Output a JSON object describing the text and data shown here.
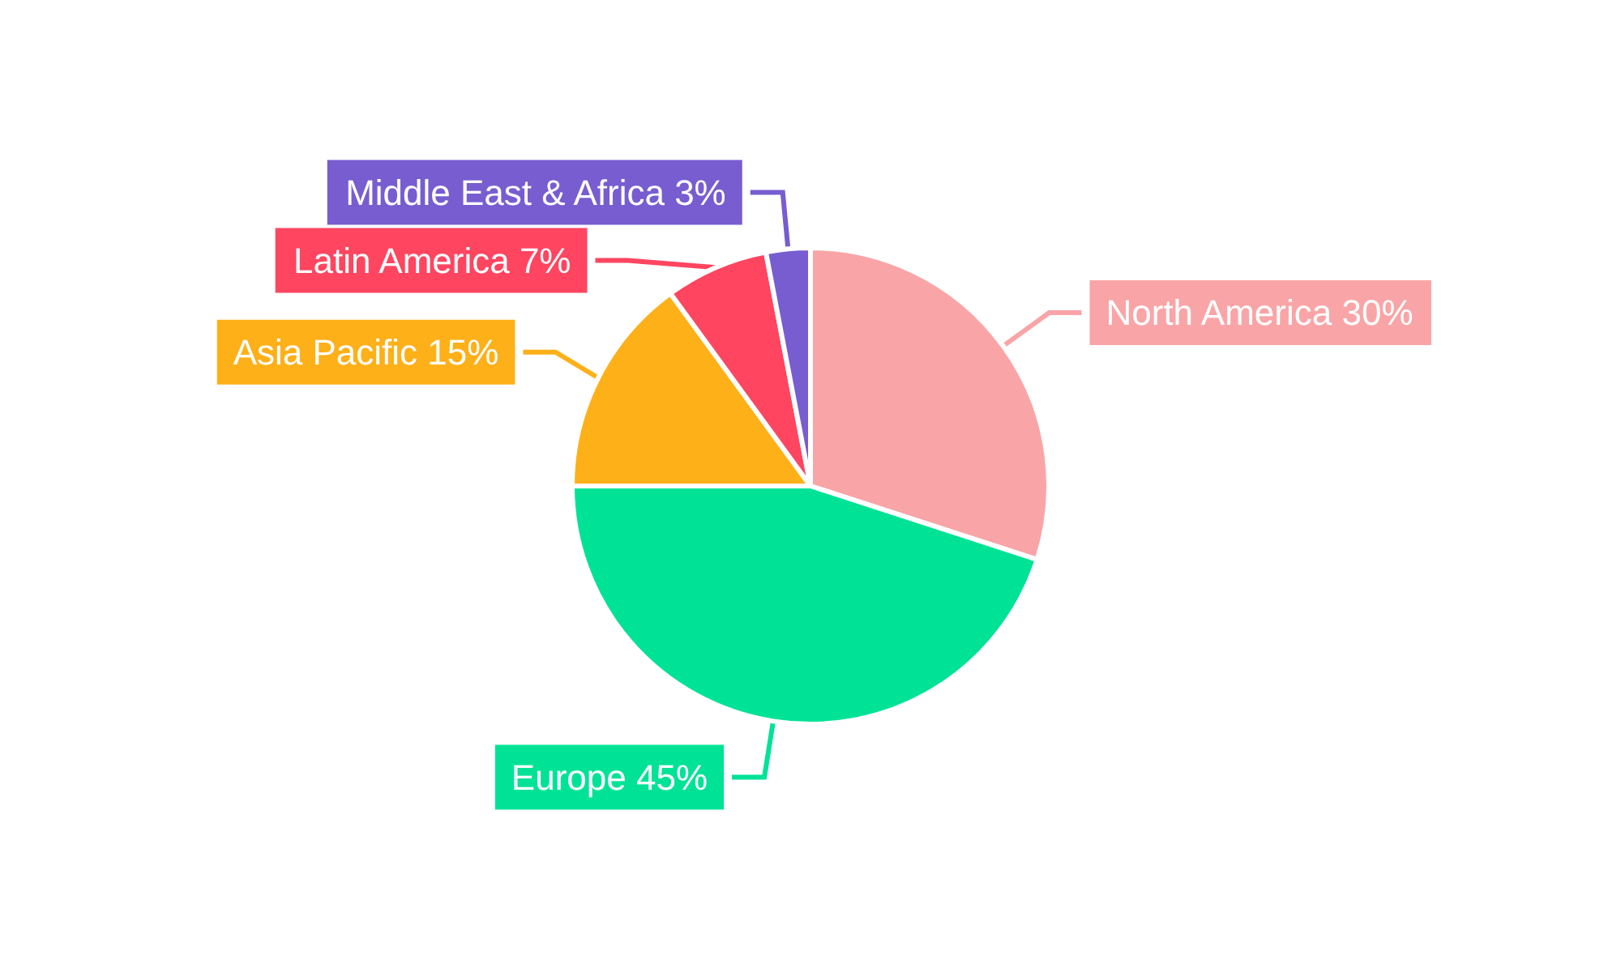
{
  "chart_data": {
    "type": "pie",
    "categories": [
      "North America",
      "Europe",
      "Asia Pacific",
      "Latin America",
      "Middle East & Africa"
    ],
    "values": [
      30,
      45,
      15,
      7,
      3
    ],
    "value_labels": [
      "30%",
      "45%",
      "15%",
      "7%",
      "3%"
    ],
    "colors": [
      "#f9a5a7",
      "#00e396",
      "#feb019",
      "#ff4560",
      "#775dd0"
    ],
    "legend": false
  }
}
